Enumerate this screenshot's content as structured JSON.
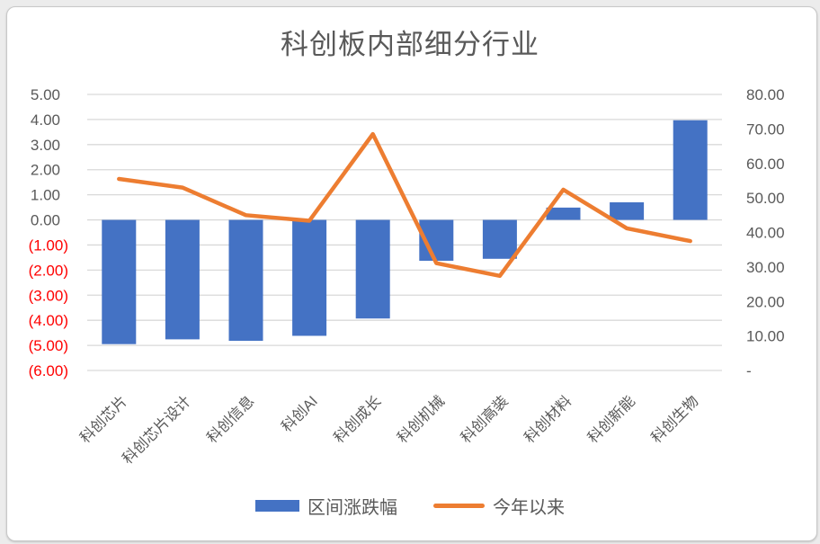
{
  "theme": {
    "page_background": "#ececec",
    "panel_background": "#ffffff",
    "panel_border": "#c8c8c8",
    "text_color": "#595959",
    "grid_color": "#d9d9d9",
    "negative_label_color": "#ff0000"
  },
  "chart_data": {
    "type": "combo-bar-line",
    "title": "科创板内部细分行业",
    "categories": [
      "科创芯片",
      "科创芯片设计",
      "科创信息",
      "科创AI",
      "科创成长",
      "科创机械",
      "科创高装",
      "科创材料",
      "科创新能",
      "科创生物"
    ],
    "series": [
      {
        "name": "区间涨跌幅",
        "type": "bar",
        "axis": "left",
        "color": "#4472C4",
        "values": [
          -4.95,
          -4.76,
          -4.82,
          -4.62,
          -3.93,
          -1.63,
          -1.55,
          0.49,
          0.7,
          3.97
        ]
      },
      {
        "name": "今年以来",
        "type": "line",
        "axis": "right",
        "color": "#ED7D31",
        "values": [
          55.5,
          53.0,
          45.0,
          43.4,
          68.5,
          31.1,
          27.4,
          52.4,
          41.2,
          37.5
        ]
      }
    ],
    "left_axis": {
      "min": -6,
      "max": 5,
      "step": 1,
      "tick_labels": [
        "5.00",
        "4.00",
        "3.00",
        "2.00",
        "1.00",
        "0.00",
        "(1.00)",
        "(2.00)",
        "(3.00)",
        "(4.00)",
        "(5.00)",
        "(6.00)"
      ],
      "negative_color": "#ff0000"
    },
    "right_axis": {
      "min": 0,
      "max": 80,
      "step": 10,
      "tick_labels": [
        "80.00",
        "70.00",
        "60.00",
        "50.00",
        "40.00",
        "30.00",
        "20.00",
        "10.00",
        "-"
      ]
    },
    "grid": true,
    "legend_position": "bottom"
  }
}
